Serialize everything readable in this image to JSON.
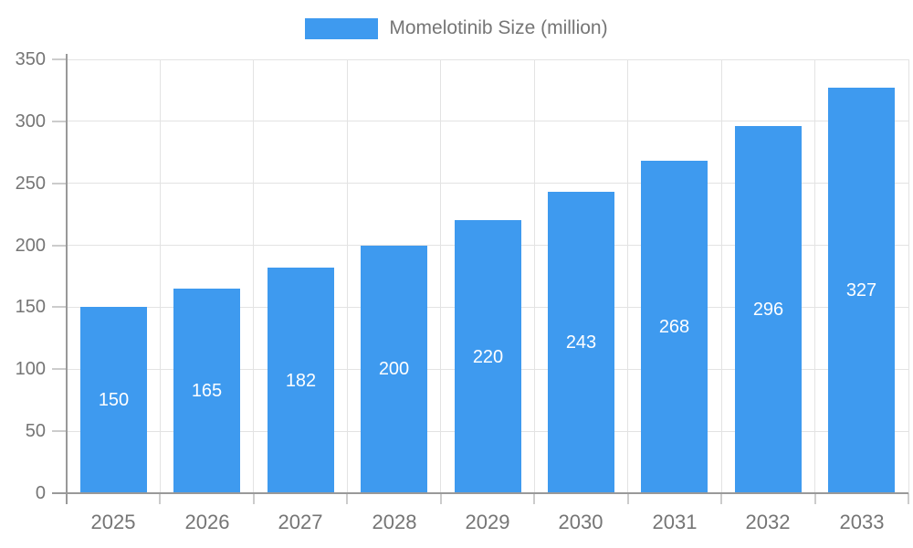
{
  "legend": {
    "label": "Momelotinib Size (million)"
  },
  "chart_data": {
    "type": "bar",
    "title": "Momelotinib Size (million)",
    "categories": [
      "2025",
      "2026",
      "2027",
      "2028",
      "2029",
      "2030",
      "2031",
      "2032",
      "2033"
    ],
    "series": [
      {
        "name": "Momelotinib Size (million)",
        "values": [
          150,
          165,
          182,
          200,
          220,
          243,
          268,
          296,
          327
        ]
      }
    ],
    "value_labels": "inside-center",
    "xlabel": "",
    "ylabel": "",
    "ylim": [
      0,
      350
    ],
    "yticks": [
      0,
      50,
      100,
      150,
      200,
      250,
      300,
      350
    ],
    "grid": true,
    "legend_position": "top-center",
    "colors": {
      "bar": "#3E9AEF",
      "grid": "#E3E3E3",
      "axis": "#999999",
      "tick": "#CCCCCC",
      "label_text": "#757575",
      "value_text": "#FFFFFF",
      "background": "#FFFFFF"
    }
  }
}
